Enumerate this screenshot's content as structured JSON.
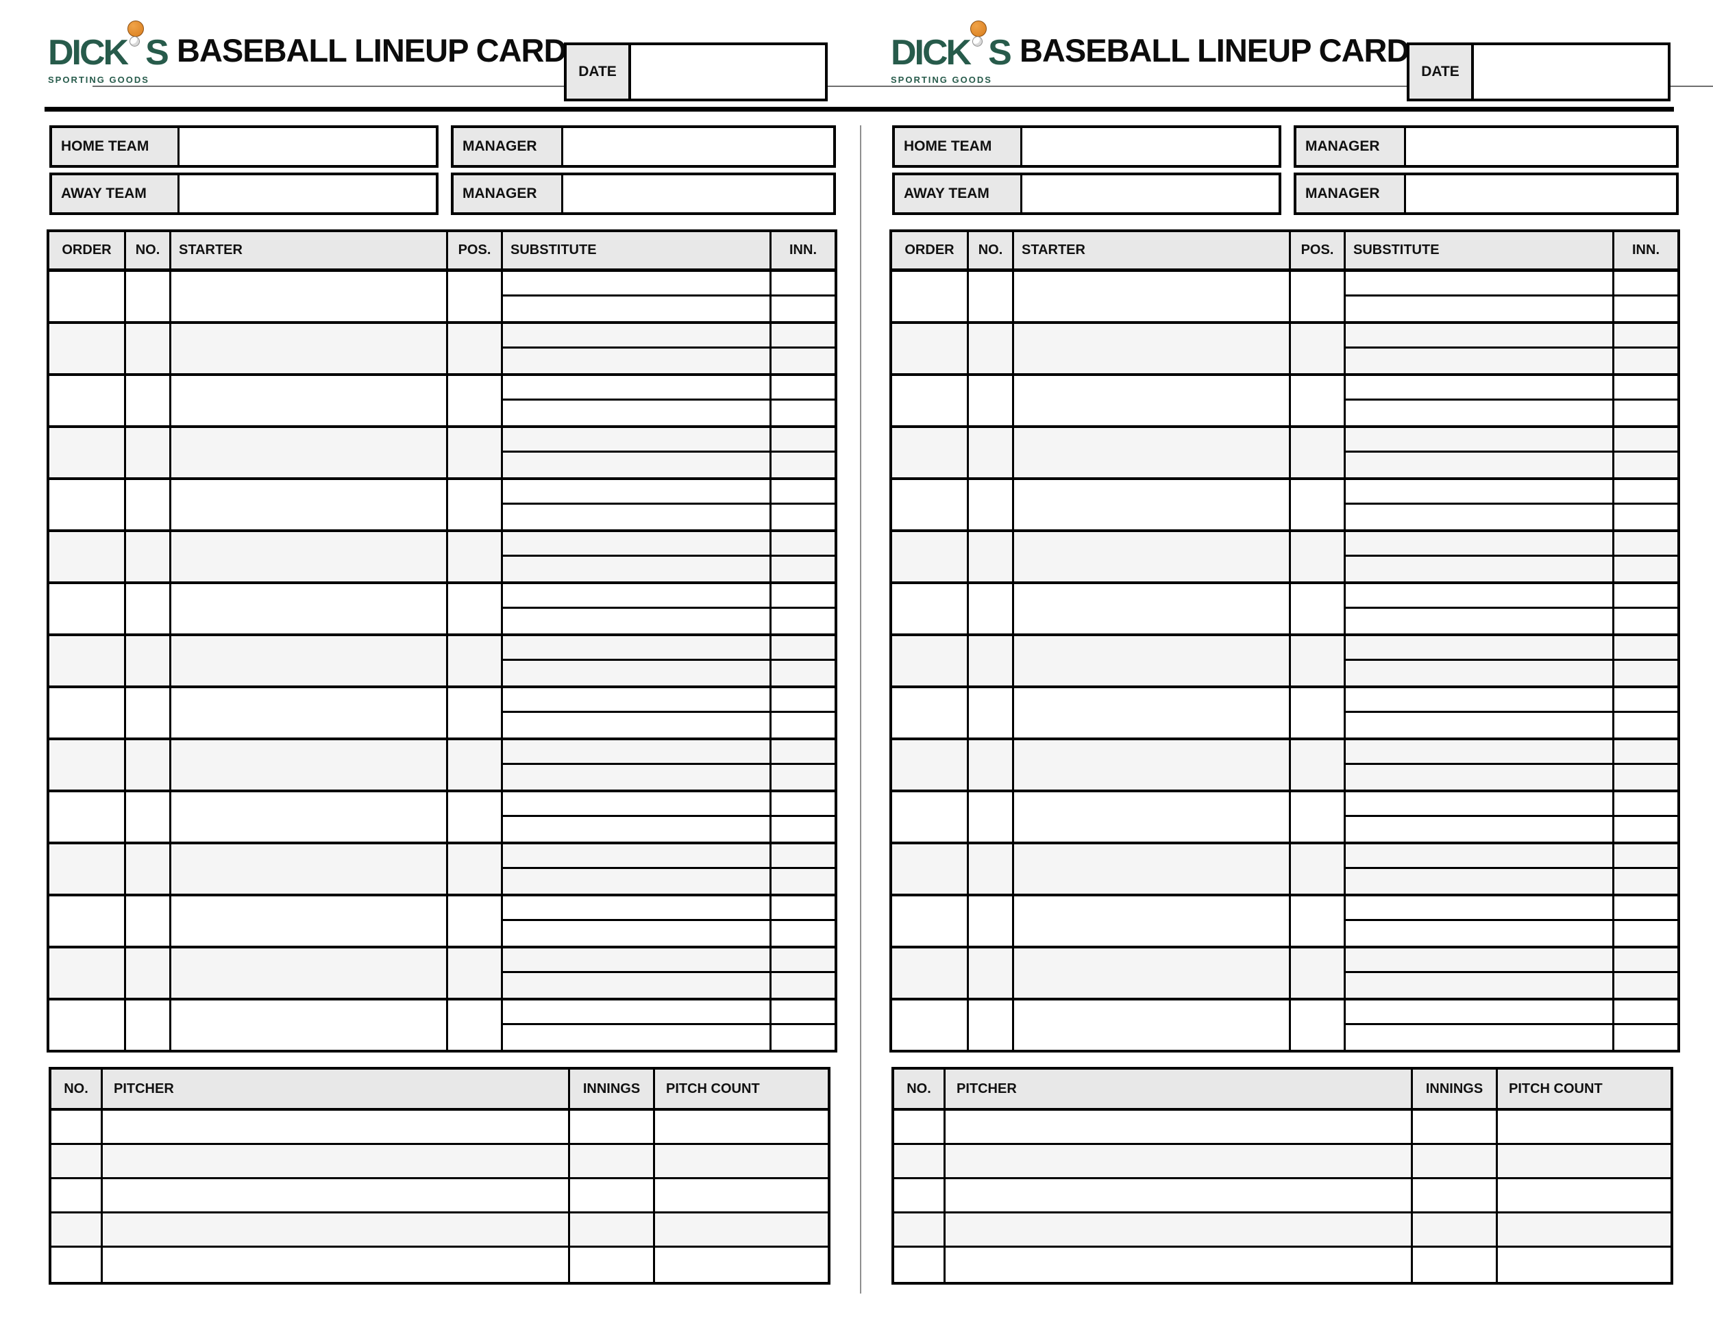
{
  "brand": {
    "name_main": "DICK",
    "name_s": "S",
    "tagline": "SPORTING GOODS"
  },
  "title": "BASEBALL LINEUP CARD",
  "date": {
    "label": "DATE",
    "value": ""
  },
  "teams": [
    {
      "label": "HOME TEAM",
      "value": "",
      "manager_label": "MANAGER",
      "manager_value": ""
    },
    {
      "label": "AWAY TEAM",
      "value": "",
      "manager_label": "MANAGER",
      "manager_value": ""
    }
  ],
  "lineup_table": {
    "headers": {
      "order": "ORDER",
      "no": "NO.",
      "starter": "STARTER",
      "pos": "POS.",
      "substitute": "SUBSTITUTE",
      "inn": "INN."
    },
    "row_count": 15,
    "substitute_rows_per_starter": 2
  },
  "pitcher_table": {
    "headers": {
      "no": "NO.",
      "pitcher": "PITCHER",
      "innings": "INNINGS",
      "pitch_count": "PITCH COUNT"
    },
    "row_count": 5
  },
  "panels": [
    "left",
    "right"
  ],
  "colors": {
    "brand_green": "#275b4b",
    "basketball_orange": "#e08a2e",
    "label_gray": "#e8e8e8",
    "alt_row_gray": "#f5f5f5",
    "border_black": "#000000"
  }
}
